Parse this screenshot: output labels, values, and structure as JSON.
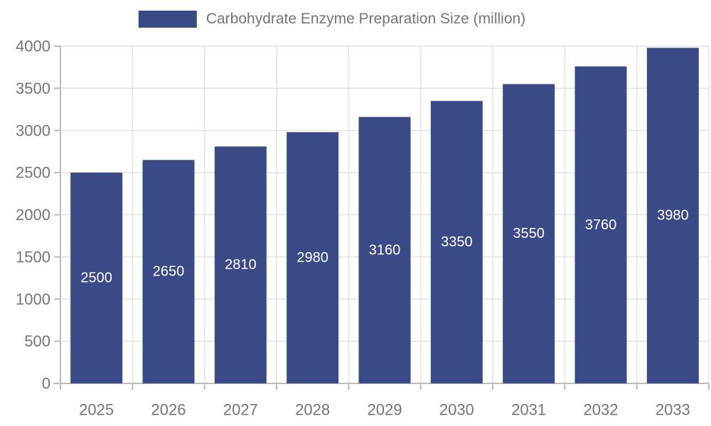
{
  "chart_data": {
    "type": "bar",
    "title": "Carbohydrate Enzyme Preparation Size (million)",
    "categories": [
      "2025",
      "2026",
      "2027",
      "2028",
      "2029",
      "2030",
      "2031",
      "2032",
      "2033"
    ],
    "values": [
      2500,
      2650,
      2810,
      2980,
      3160,
      3350,
      3550,
      3760,
      3980
    ],
    "xlabel": "",
    "ylabel": "",
    "ylim": [
      0,
      4000
    ],
    "ytick_step": 500,
    "yticks": [
      0,
      500,
      1000,
      1500,
      2000,
      2500,
      3000,
      3500,
      4000
    ],
    "grid": true,
    "legend_position": "top",
    "bar_value_labels_visible": true,
    "colors": {
      "bar": "#3A4A86",
      "bar_value_label": "#FFFFFF",
      "axis_text": "#757575",
      "grid_line": "#E3E3E3",
      "axis_line": "#BDBDBD",
      "legend_text": "#757575"
    }
  },
  "legend": {
    "label": "Carbohydrate Enzyme Preparation Size (million)"
  }
}
